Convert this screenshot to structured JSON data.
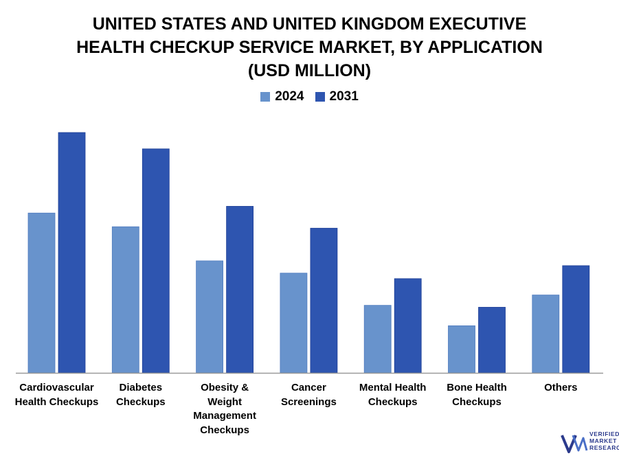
{
  "title_lines": [
    "UNITED STATES AND UNITED KINGDOM EXECUTIVE",
    "HEALTH CHECKUP SERVICE MARKET, BY APPLICATION",
    "(USD MILLION)"
  ],
  "colors": {
    "s2024": "#6893cc",
    "s2031": "#2e55b0",
    "axis": "#9a9a9a",
    "logo": "#2b3a8c"
  },
  "logo": {
    "name": "Verified Market Research",
    "lines": [
      "VERIFIED",
      "MARKET",
      "RESEARCH"
    ]
  },
  "chart_data": {
    "type": "bar",
    "title": "UNITED STATES AND UNITED KINGDOM EXECUTIVE HEALTH CHECKUP SERVICE MARKET, BY APPLICATION (USD MILLION)",
    "xlabel": "",
    "ylabel": "",
    "ylim": [
      0,
      100
    ],
    "grid": false,
    "legend_position": "top-center",
    "categories": [
      [
        "Cardiovascular",
        "Health Checkups"
      ],
      [
        "Diabetes",
        "Checkups"
      ],
      [
        "Obesity &",
        "Weight",
        "Management",
        "Checkups"
      ],
      [
        "Cancer",
        "Screenings"
      ],
      [
        "Mental Health",
        "Checkups"
      ],
      [
        "Bone Health",
        "Checkups"
      ],
      [
        "Others"
      ]
    ],
    "series": [
      {
        "name": "2024",
        "values": [
          66.5,
          60.8,
          46.6,
          41.5,
          28.1,
          19.6,
          32.4
        ]
      },
      {
        "name": "2031",
        "values": [
          100,
          93.2,
          69.3,
          60.2,
          39.2,
          27.3,
          44.6
        ]
      }
    ]
  }
}
